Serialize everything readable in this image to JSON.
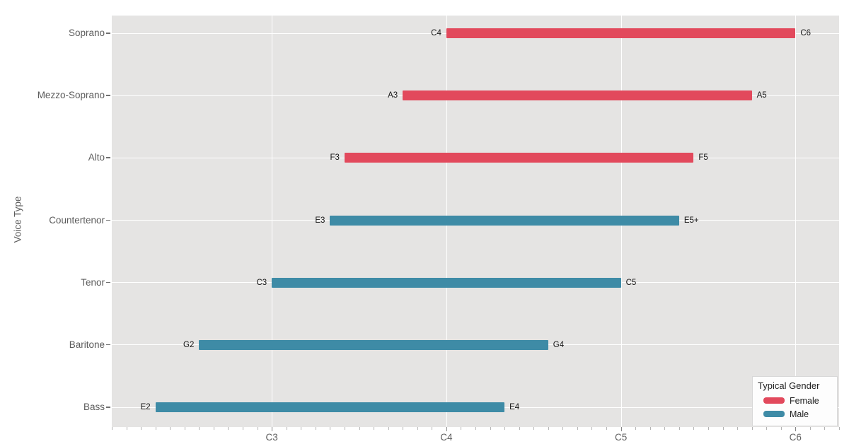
{
  "chart_data": {
    "type": "bar",
    "variant": "horizontal-range-bars",
    "title": "",
    "xlabel": "",
    "ylabel": "Voice Type",
    "categories": [
      "Soprano",
      "Mezzo-Soprano",
      "Alto",
      "Countertenor",
      "Tenor",
      "Baritone",
      "Bass"
    ],
    "series": [
      {
        "voice": "Soprano",
        "gender": "Female",
        "start_label": "C4",
        "end_label": "C6",
        "start_semitone": 60,
        "end_semitone": 84
      },
      {
        "voice": "Mezzo-Soprano",
        "gender": "Female",
        "start_label": "A3",
        "end_label": "A5",
        "start_semitone": 57,
        "end_semitone": 81
      },
      {
        "voice": "Alto",
        "gender": "Female",
        "start_label": "F3",
        "end_label": "F5",
        "start_semitone": 53,
        "end_semitone": 77
      },
      {
        "voice": "Countertenor",
        "gender": "Male",
        "start_label": "E3",
        "end_label": "E5+",
        "start_semitone": 52,
        "end_semitone": 76
      },
      {
        "voice": "Tenor",
        "gender": "Male",
        "start_label": "C3",
        "end_label": "C5",
        "start_semitone": 48,
        "end_semitone": 72
      },
      {
        "voice": "Baritone",
        "gender": "Male",
        "start_label": "G2",
        "end_label": "G4",
        "start_semitone": 43,
        "end_semitone": 67
      },
      {
        "voice": "Bass",
        "gender": "Male",
        "start_label": "E2",
        "end_label": "E4",
        "start_semitone": 40,
        "end_semitone": 64
      }
    ],
    "x_axis": {
      "tick_labels": [
        "C3",
        "C4",
        "C5",
        "C6"
      ],
      "tick_semitones": [
        48,
        60,
        72,
        84
      ],
      "domain_semitones": [
        37,
        87
      ],
      "minor_ticks_every_semitone": true,
      "grid": true
    },
    "y_axis": {
      "grid": true
    },
    "legend": {
      "title": "Typical Gender",
      "position": "bottom-right",
      "entries": [
        {
          "label": "Female",
          "color": "#e2495c"
        },
        {
          "label": "Male",
          "color": "#3e8ba6"
        }
      ]
    },
    "colors": {
      "female": "#e2495c",
      "male": "#3e8ba6",
      "plot_background": "#e5e4e3",
      "gridline": "#ffffff",
      "axis_text": "#5b5b5b",
      "bar_label_text": "#161616"
    }
  }
}
